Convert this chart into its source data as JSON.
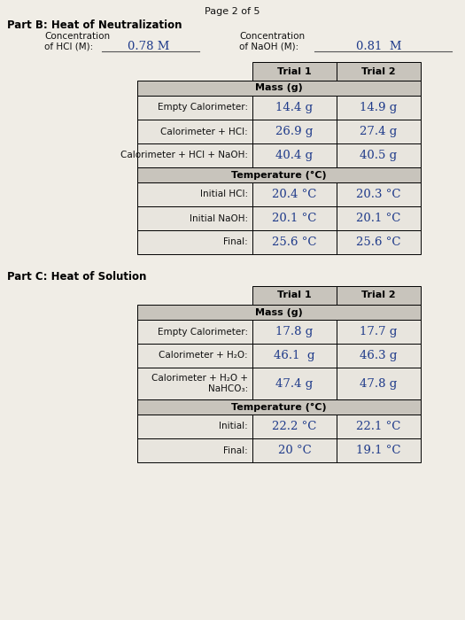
{
  "page_header": "Page 2 of 5",
  "part_b_title": "Part B: Heat of Neutralization",
  "conc_hcl_label": "Concentration\nof HCl (M):",
  "conc_hcl_value": "0.78 M",
  "conc_naoh_label": "Concentration\nof NaOH (M):",
  "conc_naoh_value": "0.81  M",
  "part_b_subheader1": "Mass (g)",
  "part_b_rows": [
    [
      "Empty Calorimeter:",
      "14.4 g",
      "14.9 g"
    ],
    [
      "Calorimeter + HCl:",
      "26.9 g",
      "27.4 g"
    ],
    [
      "Calorimeter + HCl + NaOH:",
      "40.4 g",
      "40.5 g"
    ]
  ],
  "part_b_subheader2": "Temperature (°C)",
  "part_b_temp_rows": [
    [
      "Initial HCl:",
      "20.4 °C",
      "20.3 °C"
    ],
    [
      "Initial NaOH:",
      "20.1 °C",
      "20.1 °C"
    ],
    [
      "Final:",
      "25.6 °C",
      "25.6 °C"
    ]
  ],
  "part_c_title": "Part C: Heat of Solution",
  "part_c_subheader1": "Mass (g)",
  "part_c_rows": [
    [
      "Empty Calorimeter:",
      "17.8 g",
      "17.7 g"
    ],
    [
      "Calorimeter + H₂O:",
      "46.1  g",
      "46.3 g"
    ],
    [
      "Calorimeter + H₂O +\nNaHCO₃:",
      "47.4 g",
      "47.8 g"
    ]
  ],
  "part_c_subheader2": "Temperature (°C)",
  "part_c_temp_rows": [
    [
      "Initial:",
      "22.2 °C",
      "22.1 °C"
    ],
    [
      "Final:",
      "20 °C",
      "19.1 °C"
    ]
  ],
  "bg_color": "#cbc8c0",
  "paper_color": "#f0ede6",
  "header_bg": "#c8c4bc",
  "subhdr_bg": "#c8c4bc",
  "row_bg": "#e8e5de",
  "handwriting_color": "#1e3a8a",
  "text_color": "#111111",
  "bold_color": "#000000",
  "line_color": "#555555"
}
